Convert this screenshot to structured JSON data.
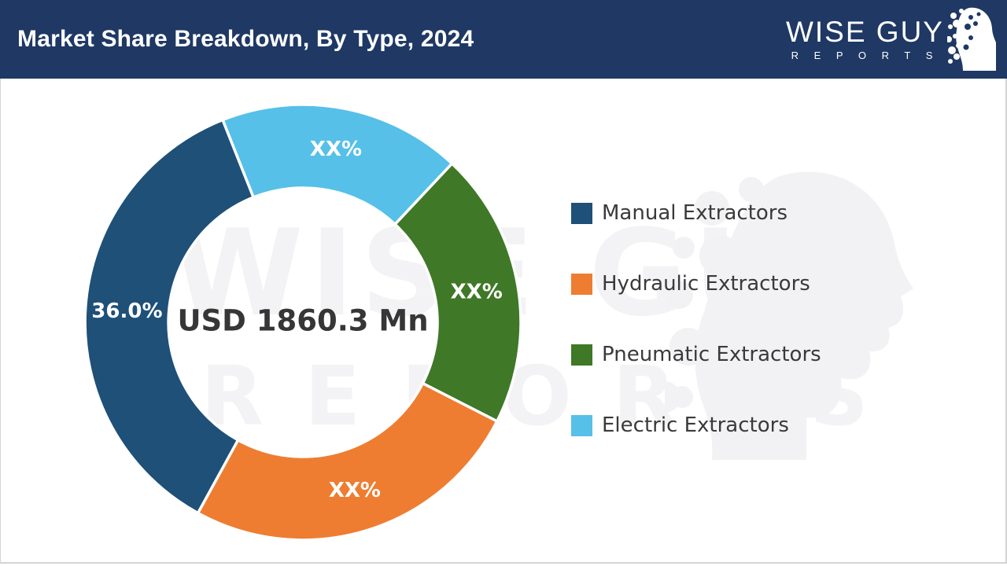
{
  "header": {
    "title": "Market Share Breakdown, By Type, 2024",
    "bg_color": "#1f3864",
    "logo": {
      "line1": "WISE GUY",
      "line2": "R E P O R T S"
    }
  },
  "watermark": {
    "line1": "WISE GUY",
    "line2": "REPORTS"
  },
  "chart_data": {
    "type": "pie",
    "subtype": "donut",
    "title": "Market Share Breakdown, By Type, 2024",
    "center_label": "USD 1860.3 Mn",
    "units": "percent of market share",
    "start_angle_deg": 46.8,
    "direction": "counterclockwise",
    "legend_position": "right",
    "slices": [
      {
        "name": "Electric Extractors",
        "percent": 18.0,
        "data_label": "XX%",
        "color": "#56c0e8"
      },
      {
        "name": "Manual Extractors",
        "percent": 36.0,
        "data_label": "36.0%",
        "color": "#1e5078"
      },
      {
        "name": "Hydraulic Extractors",
        "percent": 25.5,
        "data_label": "XX%",
        "color": "#ee7d31"
      },
      {
        "name": "Pneumatic Extractors",
        "percent": 20.5,
        "data_label": "XX%",
        "color": "#3f7827"
      }
    ],
    "legend": [
      {
        "label": "Manual Extractors",
        "color": "#1e5078"
      },
      {
        "label": "Hydraulic Extractors",
        "color": "#ee7d31"
      },
      {
        "label": "Pneumatic Extractors",
        "color": "#3f7827"
      },
      {
        "label": "Electric Extractors",
        "color": "#56c0e8"
      }
    ]
  }
}
